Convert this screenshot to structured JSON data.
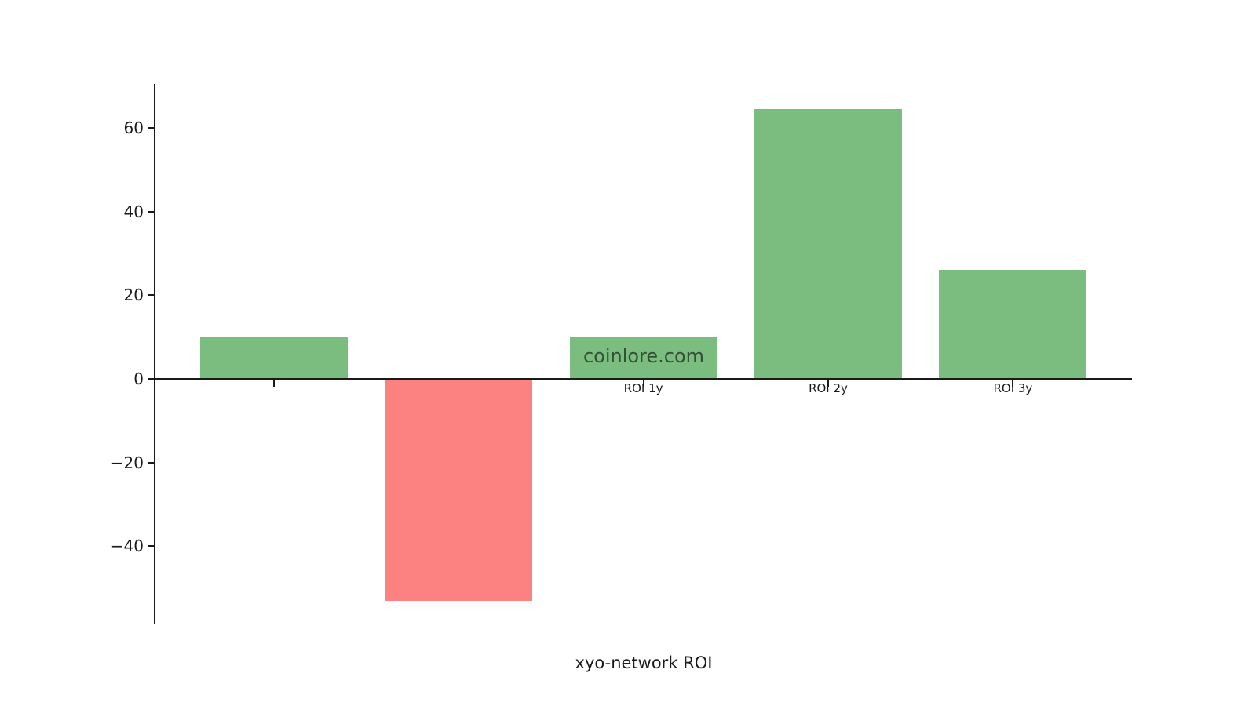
{
  "page": {
    "background_color": "#ffffff"
  },
  "watermark": {
    "text": "coinlore.com",
    "color": "rgba(0,0,0,0.58)"
  },
  "chart_data": {
    "type": "bar",
    "title": "",
    "xlabel": "xyo-network ROI",
    "ylabel": "",
    "categories": [
      "",
      "",
      "ROI 1y",
      "ROI 2y",
      "ROI 3y"
    ],
    "values": [
      10,
      -53,
      10,
      64.5,
      26
    ],
    "positive_color": "#7abd7e",
    "negative_color": "#fc8181",
    "axis_color": "#1a1a1a",
    "y_ticks": [
      60,
      40,
      20,
      0,
      -20,
      -40
    ],
    "ylim": [
      -58.5,
      70.5
    ],
    "grid": false,
    "legend": null,
    "notes": "zero line drawn across plot; x tick marks exist for all bars but the tick under the negative bar is covered by the bar; first two categories have no labels"
  }
}
